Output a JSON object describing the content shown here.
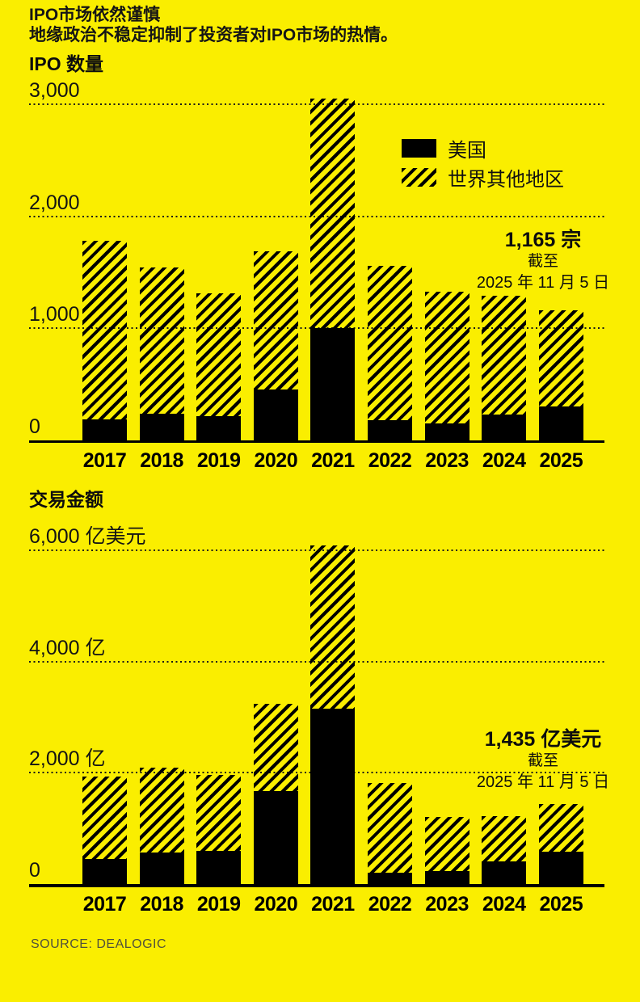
{
  "header": {
    "title": "IPO市场依然谨慎",
    "subtitle": "地缘政治不稳定抑制了投资者对IPO市场的热情。"
  },
  "legend": {
    "us": "美国",
    "rest_of_world": "世界其他地区"
  },
  "colors": {
    "background": "#FAEE00",
    "bar": "#000000",
    "text": "#111111"
  },
  "footer": {
    "source": "SOURCE: DEALOGIC"
  },
  "chart_data": [
    {
      "type": "bar",
      "stacked": true,
      "title": "IPO 数量",
      "categories": [
        "2017",
        "2018",
        "2019",
        "2020",
        "2021",
        "2022",
        "2023",
        "2024",
        "2025"
      ],
      "series": [
        {
          "name": "美国",
          "values": [
            190,
            235,
            215,
            455,
            1000,
            180,
            150,
            230,
            305
          ]
        },
        {
          "name": "世界其他地区",
          "values": [
            1590,
            1310,
            1095,
            1230,
            2050,
            1375,
            1180,
            1060,
            860
          ]
        }
      ],
      "totals": [
        1780,
        1545,
        1310,
        1685,
        3050,
        1555,
        1330,
        1290,
        1165
      ],
      "y_ticks": [
        {
          "value": 3000,
          "label": "3,000"
        },
        {
          "value": 2000,
          "label": "2,000"
        },
        {
          "value": 1000,
          "label": "1,000"
        },
        {
          "value": 0,
          "label": "0"
        }
      ],
      "ylim": [
        0,
        3100
      ],
      "grid": "dotted-horizontal",
      "legend_position": "upper-right-inside",
      "annotation": {
        "value": "1,165 宗",
        "as_of": "截至",
        "date": "2025 年 11 月 5 日"
      }
    },
    {
      "type": "bar",
      "stacked": true,
      "title": "交易金额",
      "categories": [
        "2017",
        "2018",
        "2019",
        "2020",
        "2021",
        "2022",
        "2023",
        "2024",
        "2025"
      ],
      "series": [
        {
          "name": "美国",
          "values": [
            450,
            565,
            600,
            1670,
            3150,
            205,
            230,
            400,
            580
          ]
        },
        {
          "name": "世界其他地区",
          "values": [
            1490,
            1530,
            1355,
            1570,
            2935,
            1615,
            970,
            820,
            855
          ]
        }
      ],
      "totals": [
        1940,
        2095,
        1955,
        3240,
        6085,
        1820,
        1200,
        1220,
        1435
      ],
      "y_ticks": [
        {
          "value": 6000,
          "label": "6,000 亿美元"
        },
        {
          "value": 4000,
          "label": "4,000 亿"
        },
        {
          "value": 2000,
          "label": "2,000 亿"
        },
        {
          "value": 0,
          "label": "0"
        }
      ],
      "ylim": [
        0,
        6200
      ],
      "grid": "dotted-horizontal",
      "annotation": {
        "value": "1,435 亿美元",
        "as_of": "截至",
        "date": "2025 年 11 月 5 日"
      }
    }
  ]
}
